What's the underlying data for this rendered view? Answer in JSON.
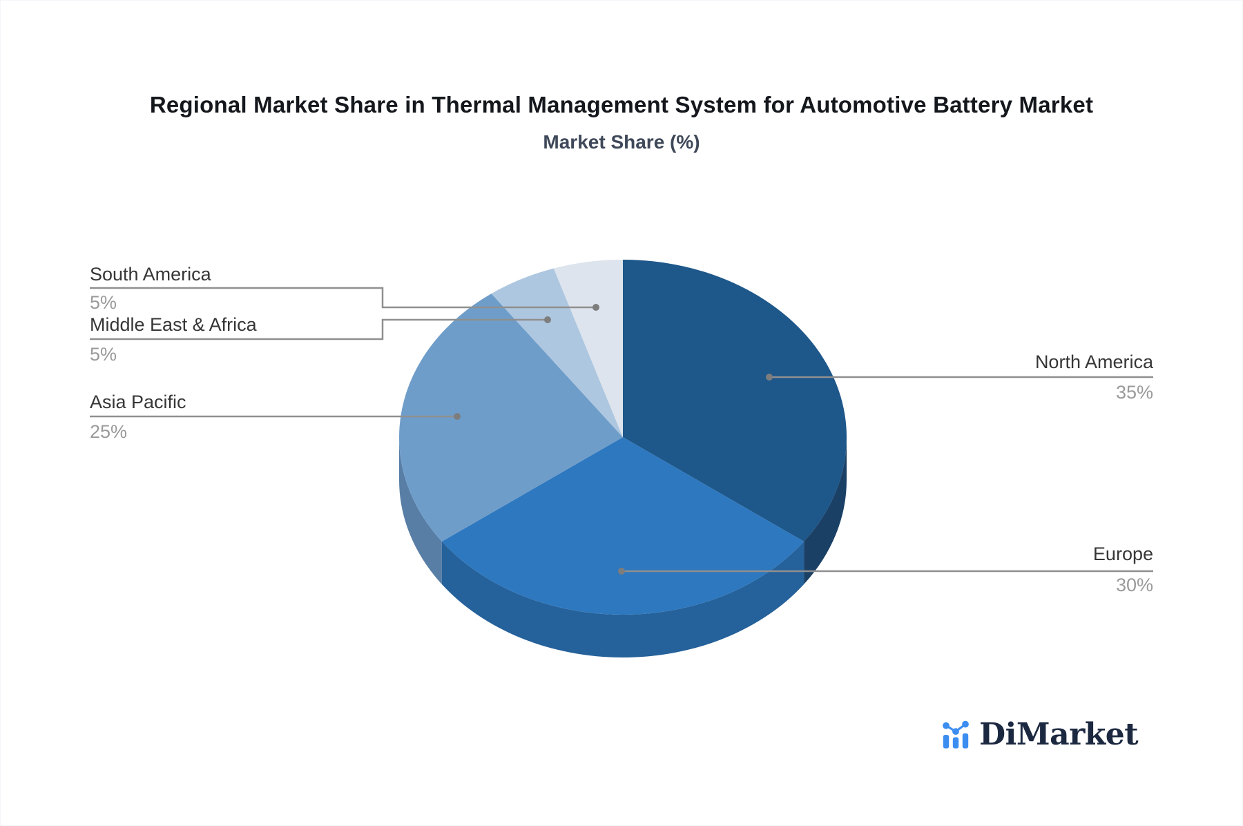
{
  "header": {
    "title": "Regional Market Share in Thermal Management System for Automotive Battery Market",
    "subtitle": "Market Share (%)"
  },
  "chart_data": {
    "type": "pie",
    "title": "Regional Market Share in Thermal Management System for Automotive Battery Market",
    "subtitle": "Market Share (%)",
    "unit": "%",
    "style": "3d-pie",
    "direction": "clockwise",
    "start_angle_deg": 0,
    "slices": [
      {
        "label": "North America",
        "value": 35,
        "pct_label": "35%",
        "color": "#1e578a",
        "side_color": "#1b4065"
      },
      {
        "label": "Europe",
        "value": 30,
        "pct_label": "30%",
        "color": "#2e78bf",
        "side_color": "#25619a"
      },
      {
        "label": "Asia Pacific",
        "value": 25,
        "pct_label": "25%",
        "color": "#6f9dca",
        "side_color": "#587ea6"
      },
      {
        "label": "Middle East & Africa",
        "value": 5,
        "pct_label": "5%",
        "color": "#aec7e0",
        "side_color": "#8ea9c4"
      },
      {
        "label": "South America",
        "value": 5,
        "pct_label": "5%",
        "color": "#dde4ed",
        "side_color": "#b9c3d0"
      }
    ],
    "leader_line_color": "#8f8f8f",
    "leader_dot_color": "#7d7d7d",
    "label_color": "#363636",
    "pct_color": "#9a9a9a",
    "background": "#ffffff"
  },
  "logo": {
    "text": "DiMarket",
    "icon": "bar-line-chart-icon",
    "icon_color": "#3c8df0",
    "text_color": "#1b2840"
  }
}
